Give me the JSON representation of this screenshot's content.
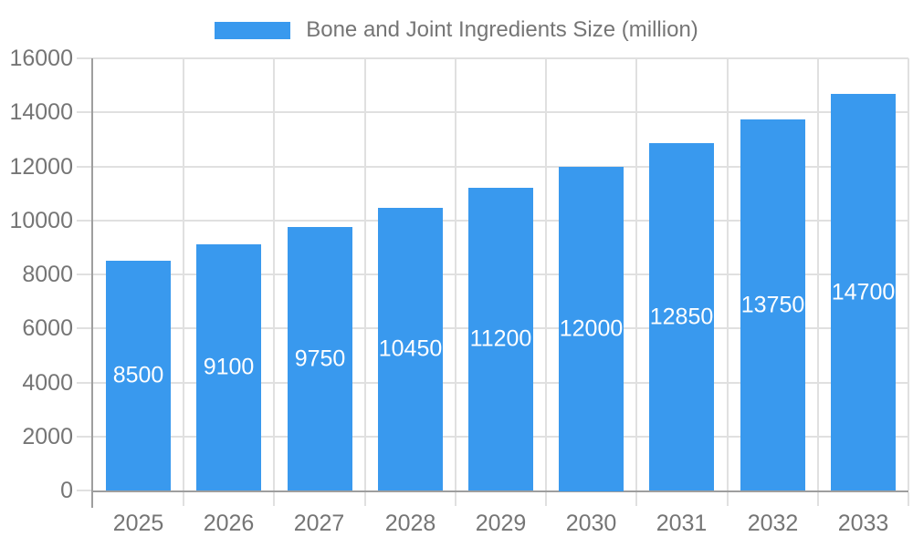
{
  "chart_data": {
    "type": "bar",
    "title": "Bone and Joint Ingredients Size (million)",
    "categories": [
      "2025",
      "2026",
      "2027",
      "2028",
      "2029",
      "2030",
      "2031",
      "2032",
      "2033"
    ],
    "values": [
      8500,
      9100,
      9750,
      10450,
      11200,
      12000,
      12850,
      13750,
      14700
    ],
    "bar_labels": [
      "8500",
      "9100",
      "9750",
      "10450",
      "11200",
      "12000",
      "12850",
      "13750",
      "14700"
    ],
    "xlabel": "",
    "ylabel": "",
    "ylim": [
      0,
      16000
    ],
    "ytick_step": 2000,
    "yticks": [
      0,
      2000,
      4000,
      6000,
      8000,
      10000,
      12000,
      14000,
      16000
    ],
    "legend_position": "top",
    "grid": true,
    "colors": {
      "bar": "#3999EE",
      "bar_label": "#FFFFFF",
      "axis_text": "#757575",
      "legend_text": "#757575",
      "grid_line": "#E0E0E0",
      "axis_line": "#9E9E9E",
      "background": "#FFFFFF"
    }
  }
}
